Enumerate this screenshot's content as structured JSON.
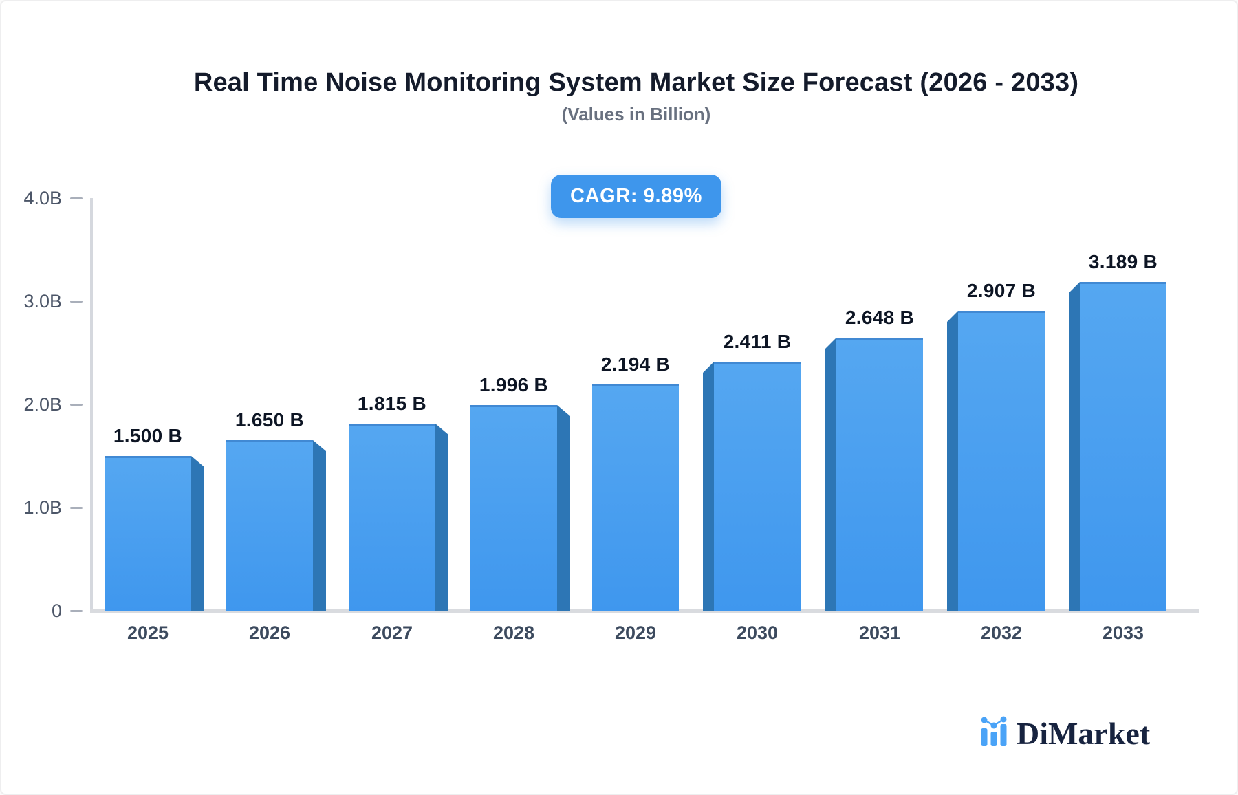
{
  "chart_data": {
    "type": "bar",
    "title": "Real Time Noise Monitoring System Market Size Forecast (2026 - 2033)",
    "subtitle": "(Values in Billion)",
    "cagr_label": "CAGR: 9.89%",
    "categories": [
      "2025",
      "2026",
      "2027",
      "2028",
      "2029",
      "2030",
      "2031",
      "2032",
      "2033"
    ],
    "values": [
      1.5,
      1.65,
      1.815,
      1.996,
      2.194,
      2.411,
      2.648,
      2.907,
      3.189
    ],
    "value_labels": [
      "1.500 B",
      "1.650 B",
      "1.815 B",
      "1.996 B",
      "2.194 B",
      "2.411 B",
      "2.648 B",
      "2.907 B",
      "3.189 B"
    ],
    "xlabel": "",
    "ylabel": "",
    "ylim": [
      0,
      4
    ],
    "ytick_values": [
      0,
      1,
      2,
      3,
      4
    ],
    "ytick_labels": [
      "0",
      "1.0B",
      "2.0B",
      "3.0B",
      "4.0B"
    ],
    "grid": false,
    "legend": false
  },
  "colors": {
    "bar_face_top": "#55a7f1",
    "bar_face_bottom": "#3f97ee",
    "bar_top_edge": "#4189d3",
    "bar_side": "#2d76b5",
    "badge_bg": "#3e96ec",
    "badge_text": "#ffffff",
    "axis_line": "#d5d8de",
    "baseline": "#d9dbdf",
    "tick_dash": "#a9afba",
    "logo_blue": "#4aa3f7",
    "logo_text": "#17233f"
  },
  "logo": {
    "text": "DiMarket"
  }
}
